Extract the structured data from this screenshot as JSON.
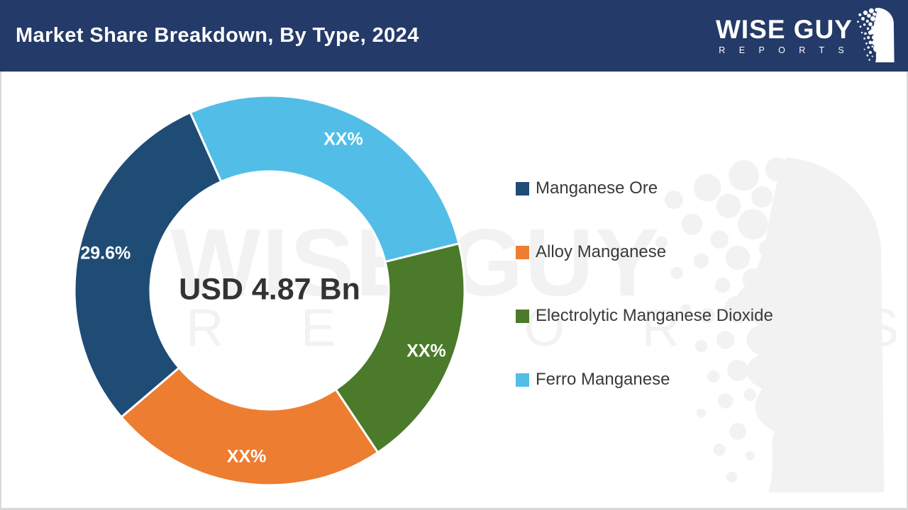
{
  "header": {
    "title": "Market Share Breakdown, By Type, 2024",
    "logo": {
      "line1": "WISE GUY",
      "line2": "R E P O R T S"
    }
  },
  "watermark": {
    "line1": "WISE GUY",
    "line2": "R E P O R T S"
  },
  "chart_data": {
    "type": "pie",
    "subtype": "donut",
    "title": "Market Share Breakdown, By Type, 2024",
    "center_label": "USD 4.87 Bn",
    "segments": [
      {
        "label": "Manganese Ore",
        "color": "#1F4C75",
        "value_pct": 29.6,
        "display": "29.6%"
      },
      {
        "label": "Alloy Manganese",
        "color": "#ED7D31",
        "value_pct": 23.1,
        "display": "XX%"
      },
      {
        "label": "Electrolytic Manganese Dioxide",
        "color": "#4A7A2A",
        "value_pct": 19.5,
        "display": "XX%"
      },
      {
        "label": "Ferro Manganese",
        "color": "#52BEE7",
        "value_pct": 27.8,
        "display": "XX%"
      }
    ],
    "clockwise_order": [
      "Ferro Manganese",
      "Electrolytic Manganese Dioxide",
      "Alloy Manganese",
      "Manganese Ore"
    ],
    "start_angle_deg": -24,
    "legend_position": "right"
  },
  "colors": {
    "header_bg": "#243A68",
    "card_border": "#D9D9D9",
    "center_text": "#333333",
    "legend_text": "#3A3A3A",
    "slice_label_text": "#FFFFFF",
    "watermark": "#F2F2F2"
  }
}
